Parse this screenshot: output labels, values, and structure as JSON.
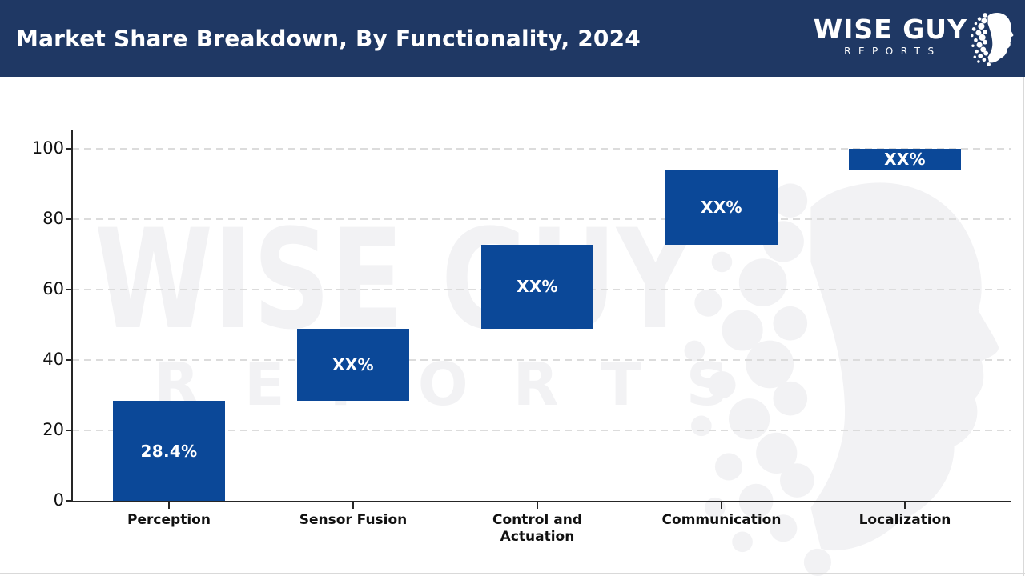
{
  "header": {
    "title": "Market Share Breakdown, By Functionality, 2024",
    "bg_color": "#1f3864",
    "logo": {
      "line1": "WISE GUY",
      "line2": "REPORTS"
    }
  },
  "watermark": {
    "line1": "WISE GUY",
    "line2": "REPORTS"
  },
  "chart_data": {
    "type": "bar",
    "subtype": "waterfall",
    "title": "Market Share Breakdown, By Functionality, 2024",
    "categories": [
      "Perception",
      "Sensor Fusion",
      "Control and Actuation",
      "Communication",
      "Localization"
    ],
    "segments": [
      {
        "start": 0,
        "end": 28.4,
        "label": "28.4%"
      },
      {
        "start": 28.4,
        "end": 48.9,
        "label": "XX%"
      },
      {
        "start": 48.9,
        "end": 72.7,
        "label": "XX%"
      },
      {
        "start": 72.7,
        "end": 94.1,
        "label": "XX%"
      },
      {
        "start": 94.1,
        "end": 100,
        "label": "XX%"
      }
    ],
    "yticks": [
      0,
      20,
      40,
      60,
      80,
      100
    ],
    "ylim": [
      0,
      105
    ],
    "xlabel": "",
    "ylabel": "",
    "grid": "horizontal-dashed",
    "legend": "none",
    "bar_color": "#0b4898",
    "axis_color": "#262626",
    "grid_color": "#dcdcdc",
    "watermark_color": "#f2f2f4"
  }
}
